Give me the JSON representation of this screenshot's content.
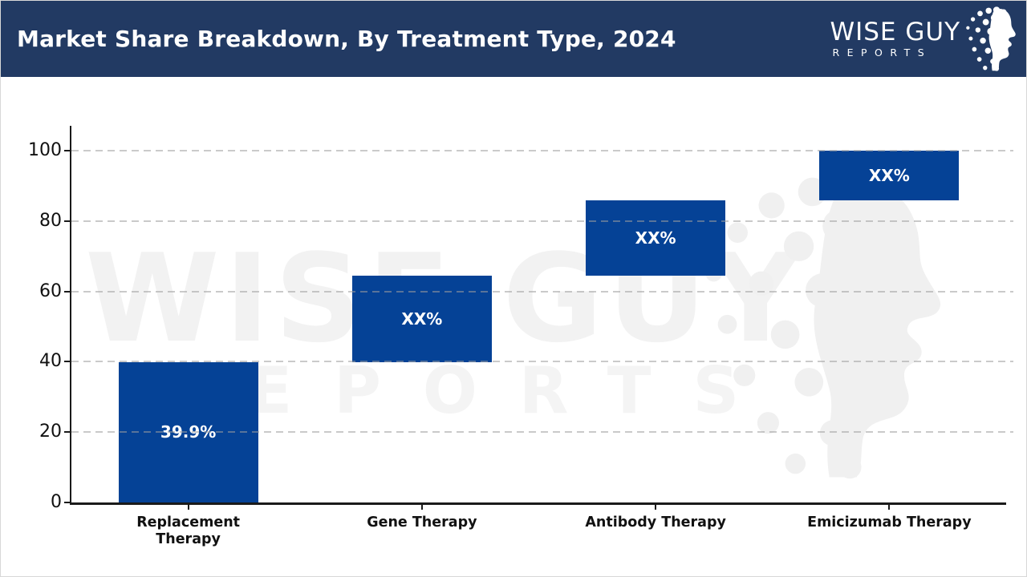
{
  "header": {
    "title": "Market Share Breakdown, By Treatment Type, 2024",
    "bg_color": "#223a63",
    "logo": {
      "line1": "WISE GUY",
      "line2": "REPORTS"
    }
  },
  "watermark": {
    "line1": "WISE GUY",
    "line2": "REPORTS"
  },
  "chart_data": {
    "type": "bar",
    "variant": "waterfall",
    "title": "Market Share Breakdown, By Treatment Type, 2024",
    "xlabel": "",
    "ylabel": "",
    "categories": [
      "Replacement Therapy",
      "Gene Therapy",
      "Antibody Therapy",
      "Emicizumab Therapy"
    ],
    "bars": [
      {
        "category": "Replacement Therapy",
        "tick_label": "Replacement\nTherapy",
        "start": 0,
        "end": 39.9,
        "label": "39.9%"
      },
      {
        "category": "Gene Therapy",
        "tick_label": "Gene Therapy",
        "start": 39.9,
        "end": 64.4,
        "label": "XX%"
      },
      {
        "category": "Antibody Therapy",
        "tick_label": "Antibody Therapy",
        "start": 64.4,
        "end": 85.8,
        "label": "XX%"
      },
      {
        "category": "Emicizumab Therapy",
        "tick_label": "Emicizumab Therapy",
        "start": 85.8,
        "end": 100,
        "label": "XX%"
      }
    ],
    "y_ticks": [
      0,
      20,
      40,
      60,
      80,
      100
    ],
    "ylim": [
      0,
      107
    ],
    "grid": "horizontal-dashed",
    "legend": null,
    "colors": {
      "bar": "#054296",
      "value_label": "#ffffff",
      "axis": "#1a1a1a",
      "tick_label": "#111111",
      "header_bg": "#223a63",
      "watermark": "#f2f2f2"
    }
  }
}
